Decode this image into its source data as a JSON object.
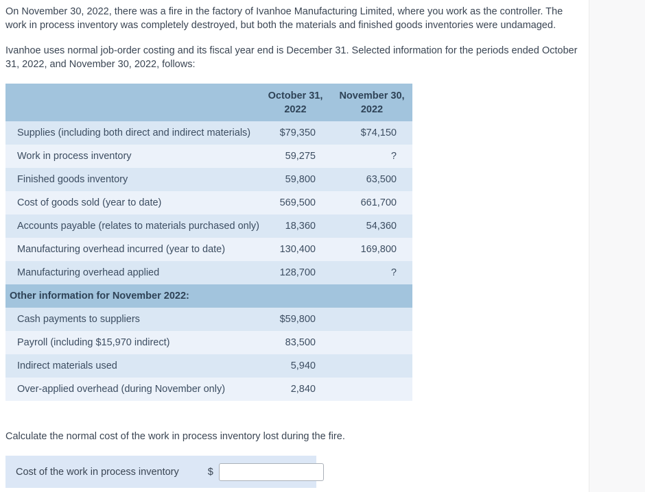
{
  "intro": {
    "paragraph1": "On November 30, 2022, there was a fire in the factory of Ivanhoe Manufacturing Limited, where you work as the controller. The work in process inventory was completely destroyed, but both the materials and finished goods inventories were undamaged.",
    "paragraph2": "Ivanhoe uses normal job-order costing and its fiscal year end is December 31. Selected information for the periods ended October 31, 2022, and November 30, 2022, follows:"
  },
  "table": {
    "columns": [
      "October 31, 2022",
      "November 30, 2022"
    ],
    "rows": [
      {
        "label": "Supplies (including both direct and indirect materials)",
        "oct": "$79,350",
        "nov": "$74,150"
      },
      {
        "label": "Work in process inventory",
        "oct": "59,275",
        "nov": "?"
      },
      {
        "label": "Finished goods inventory",
        "oct": "59,800",
        "nov": "63,500"
      },
      {
        "label": "Cost of goods sold (year to date)",
        "oct": "569,500",
        "nov": "661,700"
      },
      {
        "label": "Accounts payable (relates to materials purchased only)",
        "oct": "18,360",
        "nov": "54,360"
      },
      {
        "label": "Manufacturing overhead incurred (year to date)",
        "oct": "130,400",
        "nov": "169,800"
      },
      {
        "label": "Manufacturing overhead applied",
        "oct": "128,700",
        "nov": "?"
      }
    ],
    "section_header": "Other information for November 2022:",
    "other_rows": [
      {
        "label": "Cash payments to suppliers",
        "value": "$59,800"
      },
      {
        "label": "Payroll (including $15,970 indirect)",
        "value": "83,500"
      },
      {
        "label": "Indirect materials used",
        "value": "5,940"
      },
      {
        "label": "Over-applied overhead (during November only)",
        "value": "2,840"
      }
    ]
  },
  "question": "Calculate the normal cost of the work in process inventory lost during the fire.",
  "answer": {
    "label": "Cost of the work in process inventory",
    "currency_symbol": "$",
    "input_value": "",
    "input_placeholder": ""
  },
  "colors": {
    "header_bg": "#a2c4dd",
    "row_dark": "#dae7f4",
    "row_light": "#ecf2fa",
    "answer_box_bg": "#dce7f6",
    "text_main": "#3a4553",
    "text_table": "#3c4d61",
    "text_header": "#2e4256",
    "gutter_bg": "#f8f8f9",
    "input_border": "#aab0b8"
  }
}
